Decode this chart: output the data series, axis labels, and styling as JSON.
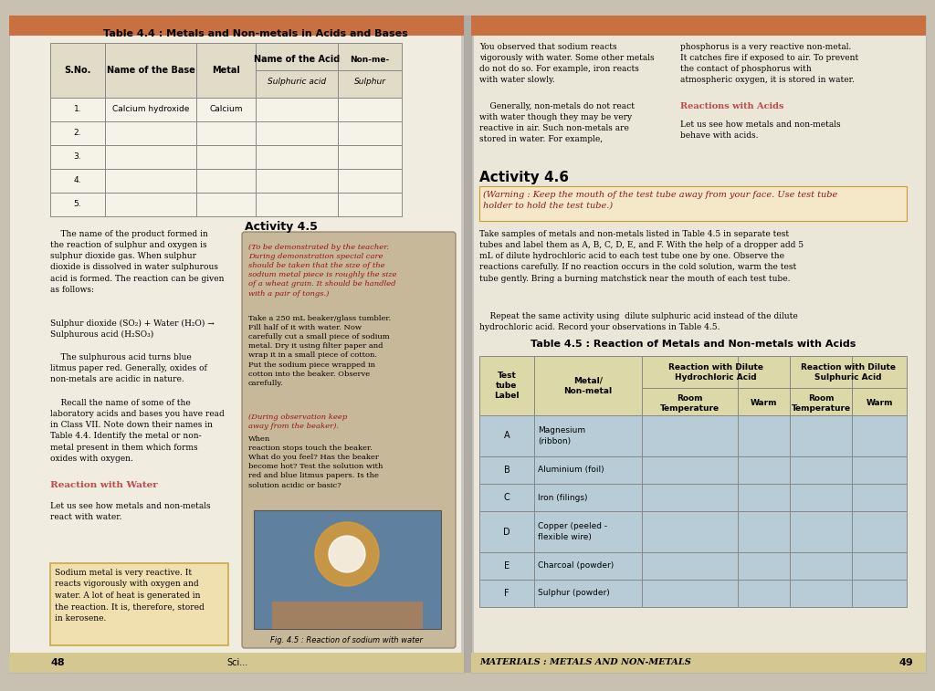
{
  "bg_color": "#c8c0b0",
  "left_page_bg": "#f0ece0",
  "right_page_bg": "#eae6d8",
  "title44": "Table 4.4 : Metals and Non-metals in Acids and Bases",
  "table44_header_bg": "#e0dcc8",
  "table44_cell_bg": "#f5f2e8",
  "left_text1": "    The name of the product formed in\nthe reaction of sulphur and oxygen is\nsulphur dioxide gas. When sulphur\ndioxide is dissolved in water sulphurous\nacid is formed. The reaction can be given\nas follows:",
  "left_text2": "Sulphur dioxide (SO₂) + Water (H₂O) →\nSulphurous acid (H₂SO₃)",
  "left_text3": "    The sulphurous acid turns blue\nlitmus paper red. Generally, oxides of\nnon-metals are acidic in nature.",
  "left_text4": "    Recall the name of some of the\nlaboratory acids and bases you have read\nin Class VII. Note down their names in\nTable 4.4. Identify the metal or non-\nmetal present in them which forms\noxides with oxygen.",
  "reaction_water_title": "Reaction with Water",
  "reaction_water_text": "Let us see how metals and non-metals\nreact with water.",
  "sodium_box_text": "Sodium metal is very reactive. It\nreacts vigorously with oxygen and\nwater. A lot of heat is generated in\nthe reaction. It is, therefore, stored\nin kerosene.",
  "sodium_box_bg": "#f0e0b0",
  "sodium_box_border": "#c8a848",
  "activity45_title": "Activity 4.5",
  "activity45_box_bg": "#c8b89a",
  "activity45_italic_text": "(To be demonstrated by the teacher.\nDuring demonstration special care\nshould be taken that the size of the\nsodium metal piece is roughly the size\nof a wheat grain. It should be handled\nwith a pair of tongs.)\nTake a 250 mL beaker/glass tumbler.\nFill half of it with water. Now\ncarefully cut a small piece of sodium\nmetal. Dry it using filter paper and\nwrap it in a small piece of cotton.\nPut the sodium piece wrapped in\ncotton into the beaker. Observe\ncarefully. (During observation keep\naway from the beaker). When\nreaction stops touch the beaker.\nWhat do you feel? Has the beaker\nbecome hot? Test the solution with\nred and blue litmus papers. Is the\nsolution acidic or basic?",
  "activity45_red_italic": "(To be demonstrated by the teacher.\nDuring demonstration special care\nshould be taken that the size of the\nsodium metal piece is roughly the size\nof a wheat grain. It should be handled\nwith a pair of tongs.)",
  "activity45_black_text": "Take a 250 mL beaker/glass tumbler.\nFill half of it with water. Now\ncarefully cut a small piece of sodium\nmetal. Dry it using filter paper and\nwrap it in a small piece of cotton.\nPut the sodium piece wrapped in\ncotton into the beaker. Observe\ncarefully.",
  "activity45_red_again": "(During observation keep\naway from the beaker).",
  "activity45_last": "When\nreaction stops touch the beaker.\nWhat do you feel? Has the beaker\nbecome hot? Test the solution with\nred and blue litmus papers. Is the\nsolution acidic or basic?",
  "fig_caption": "Fig. 4.5 : Reaction of sodium with water",
  "right_col1_text1": "You observed that sodium reacts\nvigorously with water. Some other metals\ndo not do so. For example, iron reacts\nwith water slowly.",
  "right_col1_text2": "    Generally, non-metals do not react\nwith water though they may be very\nreactive in air. Such non-metals are\nstored in water. For example,",
  "right_col2_text1": "phosphorus is a very reactive non-metal.\nIt catches fire if exposed to air. To prevent\nthe contact of phosphorus with\natmospheric oxygen, it is stored in water.",
  "reactions_acids_title": "Reactions with Acids",
  "reactions_acids_text": "Let us see how metals and non-metals\nbehave with acids.",
  "activity46_title": "Activity 4.6",
  "activity46_warning": "(Warning : Keep the mouth of the test tube away from your face. Use test tube\nholder to hold the test tube.)",
  "activity46_warning_color": "#8b1a1a",
  "activity46_warning_bg": "#f5e8c8",
  "activity46_text": "Take samples of metals and non-metals listed in Table 4.5 in separate test\ntubes and label them as A, B, C, D, E, and F. With the help of a dropper add 5\nmL of dilute hydrochloric acid to each test tube one by one. Observe the\nreactions carefully. If no reaction occurs in the cold solution, warm the test\ntube gently. Bring a burning matchstick near the mouth of each test tube.",
  "activity46_text2": "    Repeat the same activity using  dilute sulphuric acid instead of the dilute\nhydrochloric acid. Record your observations in Table 4.5.",
  "title45": "Table 4.5 : Reaction of Metals and Non-metals with Acids",
  "table45_header_bg": "#ddd8a8",
  "table45_cell_bg": "#b8ccd8",
  "table45_rows": [
    [
      "A",
      "Magnesium\n(ribbon)"
    ],
    [
      "B",
      "Aluminium (foil)"
    ],
    [
      "C",
      "Iron (filings)"
    ],
    [
      "D",
      "Copper (peeled -\nflexible wire)"
    ],
    [
      "E",
      "Charcoal (powder)"
    ],
    [
      "F",
      "Sulphur (powder)"
    ]
  ],
  "footer_left_text": "MATERIALS : METALS AND NON-METALS",
  "page_num_left": "48",
  "page_num_right": "49",
  "accent_color": "#c04848",
  "spine_color": "#909090"
}
